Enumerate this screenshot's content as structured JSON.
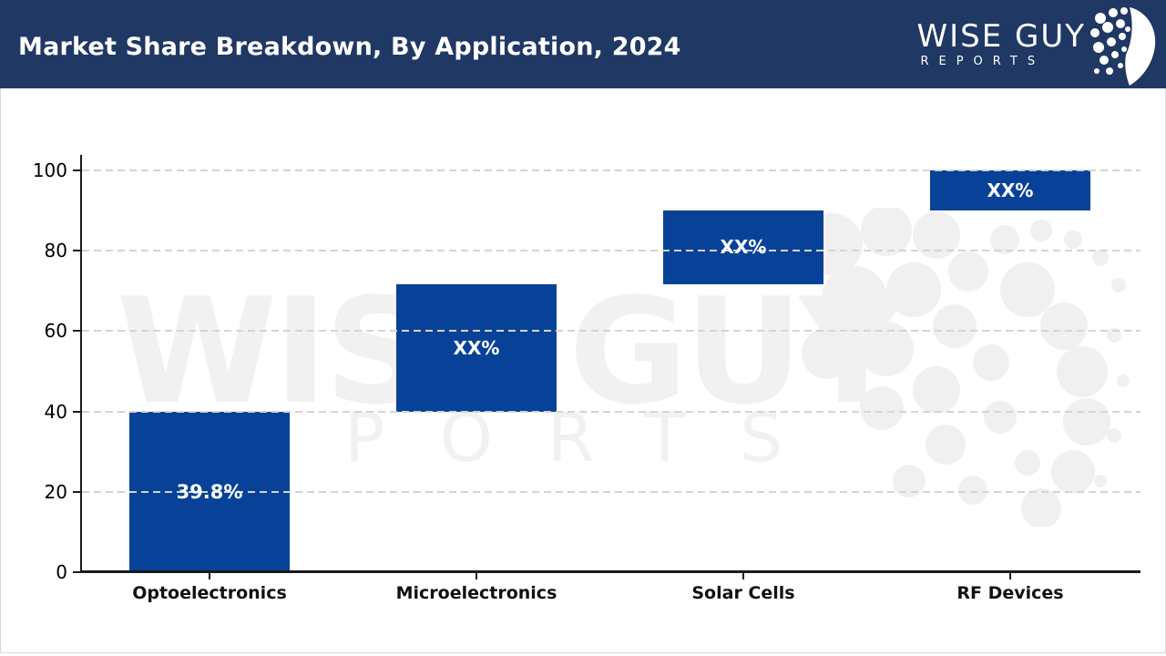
{
  "header": {
    "title": "Market Share Breakdown, By Application, 2024",
    "logo": {
      "name": "WISE GUY",
      "subtitle": "REPORTS"
    }
  },
  "watermark": {
    "line1": "WISE GUY",
    "line2": "REPORTS"
  },
  "chart_data": {
    "type": "bar",
    "subtype": "waterfall",
    "title": "Market Share Breakdown, By Application, 2024",
    "categories": [
      "Optoelectronics",
      "Microelectronics",
      "Solar Cells",
      "RF Devices"
    ],
    "segments": [
      {
        "category": "Optoelectronics",
        "start": 0,
        "end": 39.8,
        "label": "39.8%"
      },
      {
        "category": "Microelectronics",
        "start": 39.8,
        "end": 71.6,
        "label": "XX%"
      },
      {
        "category": "Solar Cells",
        "start": 71.6,
        "end": 90.1,
        "label": "XX%"
      },
      {
        "category": "RF Devices",
        "start": 90.1,
        "end": 100,
        "label": "XX%"
      }
    ],
    "yticks": [
      0,
      20,
      40,
      60,
      80,
      100
    ],
    "ylim": [
      0,
      105
    ],
    "xlabel": "",
    "ylabel": "",
    "grid": "horizontal-dashed",
    "legend": "none"
  },
  "colors": {
    "header_bg": "#1f3864",
    "bar": "#084298",
    "grid": "#d4d4d4",
    "axis": "#1a1a1a",
    "watermark": "#f1f1f1",
    "frame": "#d9d9d9",
    "bar_label": "#ffffff"
  }
}
